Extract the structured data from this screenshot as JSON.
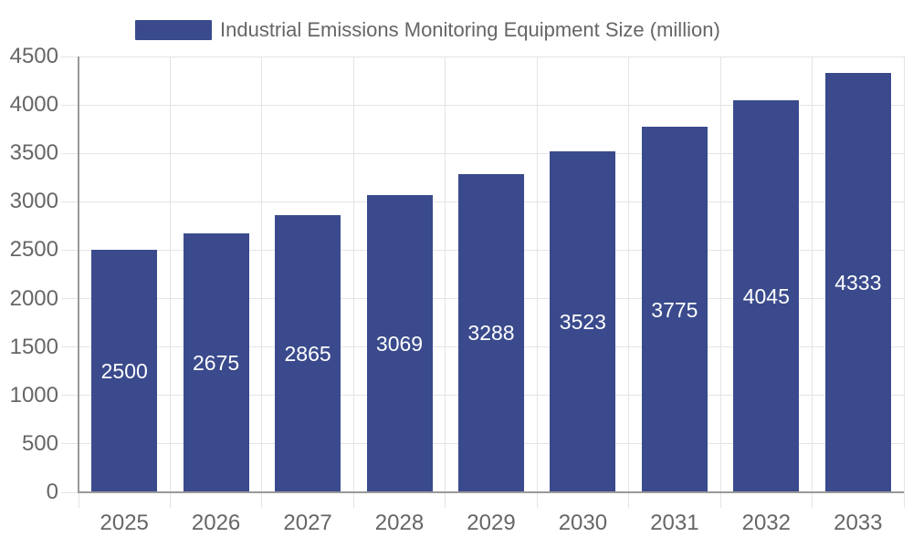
{
  "legend": {
    "label": "Industrial Emissions Monitoring Equipment Size (million)"
  },
  "chart_data": {
    "type": "bar",
    "title": "Industrial Emissions Monitoring Equipment Size (million)",
    "categories": [
      "2025",
      "2026",
      "2027",
      "2028",
      "2029",
      "2030",
      "2031",
      "2032",
      "2033"
    ],
    "values": [
      2500,
      2675,
      2865,
      3069,
      3288,
      3523,
      3775,
      4045,
      4333
    ],
    "xlabel": "",
    "ylabel": "",
    "ylim": [
      0,
      4500
    ],
    "ytick_step": 500,
    "yticks": [
      0,
      500,
      1000,
      1500,
      2000,
      2500,
      3000,
      3500,
      4000,
      4500
    ],
    "grid": true,
    "legend_position": "top-center",
    "bar_label_position": "inside-middle",
    "colors": {
      "bar": "#3A4A8C",
      "bar_label": "#FFFFFF",
      "axis_text": "#666666",
      "legend_text": "#666666",
      "grid_line": "#E4E4E7",
      "axis_line": "#999999",
      "background": "#FFFFFF"
    }
  }
}
